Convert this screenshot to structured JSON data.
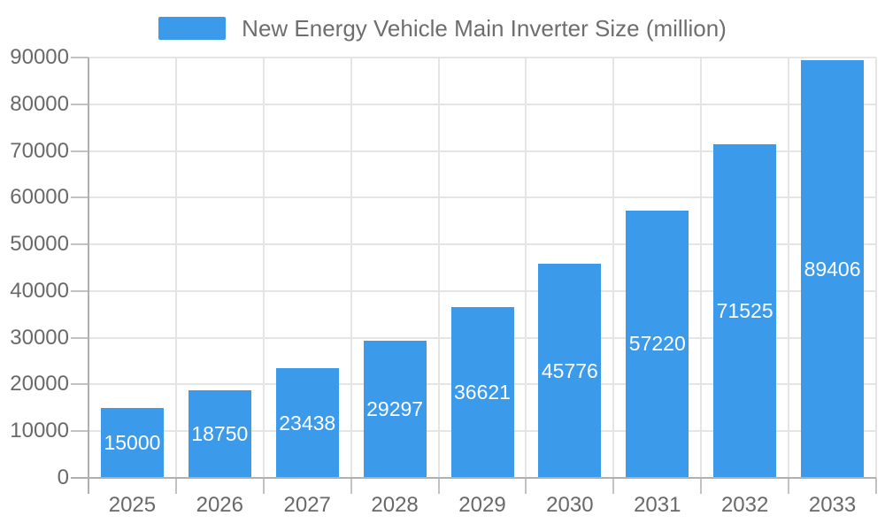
{
  "legend": {
    "label": "New Energy Vehicle Main Inverter Size (million)"
  },
  "chart_data": {
    "type": "bar",
    "title": "New Energy Vehicle Main Inverter Size (million)",
    "categories": [
      "2025",
      "2026",
      "2027",
      "2028",
      "2029",
      "2030",
      "2031",
      "2032",
      "2033"
    ],
    "values": [
      15000,
      18750,
      23438,
      29297,
      36621,
      45776,
      57220,
      71525,
      89406
    ],
    "series": [
      {
        "name": "New Energy Vehicle Main Inverter Size (million)",
        "values": [
          15000,
          18750,
          23438,
          29297,
          36621,
          45776,
          57220,
          71525,
          89406
        ]
      }
    ],
    "xlabel": "",
    "ylabel": "",
    "ylim": [
      0,
      90000
    ],
    "y_tick_step": 10000,
    "y_tick_labels": [
      "0",
      "10000",
      "20000",
      "30000",
      "40000",
      "50000",
      "60000",
      "70000",
      "80000",
      "90000"
    ],
    "value_labels": [
      "15000",
      "18750",
      "23438",
      "29297",
      "36621",
      "45776",
      "57220",
      "71525",
      "89406"
    ],
    "value_label_position": "inside-center",
    "grid": true,
    "vertical_gridlines": true,
    "legend_position": "top-center",
    "colors": {
      "bar": "#3c9aeb",
      "value_label": "#ffffff",
      "axis_label": "#696969",
      "legend_text": "#6e6e6e",
      "axis_line": "#b0b0b0",
      "tick": "#c2c2c2",
      "gridline": "#e5e5e5",
      "background": "#ffffff"
    }
  }
}
